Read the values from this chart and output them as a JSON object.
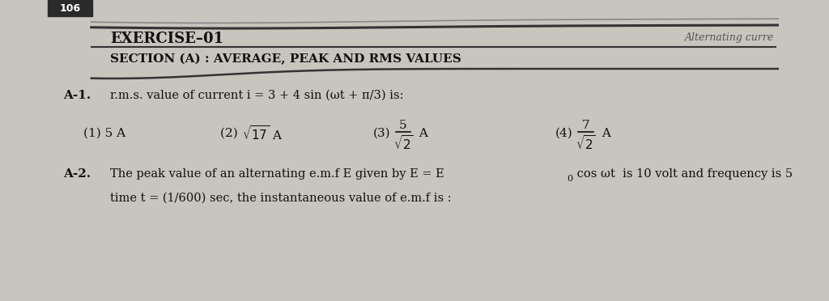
{
  "page_bg": "#c8c4be",
  "tab_color": "#2a2a2a",
  "tab_text": "106",
  "tab_text_color": "#ffffff",
  "exercise_title": "EXERCISE–01",
  "right_header": "Alternating curre",
  "section_title": "SECTION (A) : AVERAGE, PEAK AND RMS VALUES",
  "q1_label": "A-1.",
  "q1_text": "r.m.s. value of current i = 3 + 4 sin (ωt + π/3) is:",
  "q1_opt1": "(1) 5 A",
  "q2_label": "A-2.",
  "q2_text1": "The peak value of an alternating e.m.f E given by E = E",
  "q2_text1_post": " cos ωt  is 10 volt and frequency is 5",
  "q2_text2": "time t = (1/600) sec, the instantaneous value of e.m.f is :"
}
